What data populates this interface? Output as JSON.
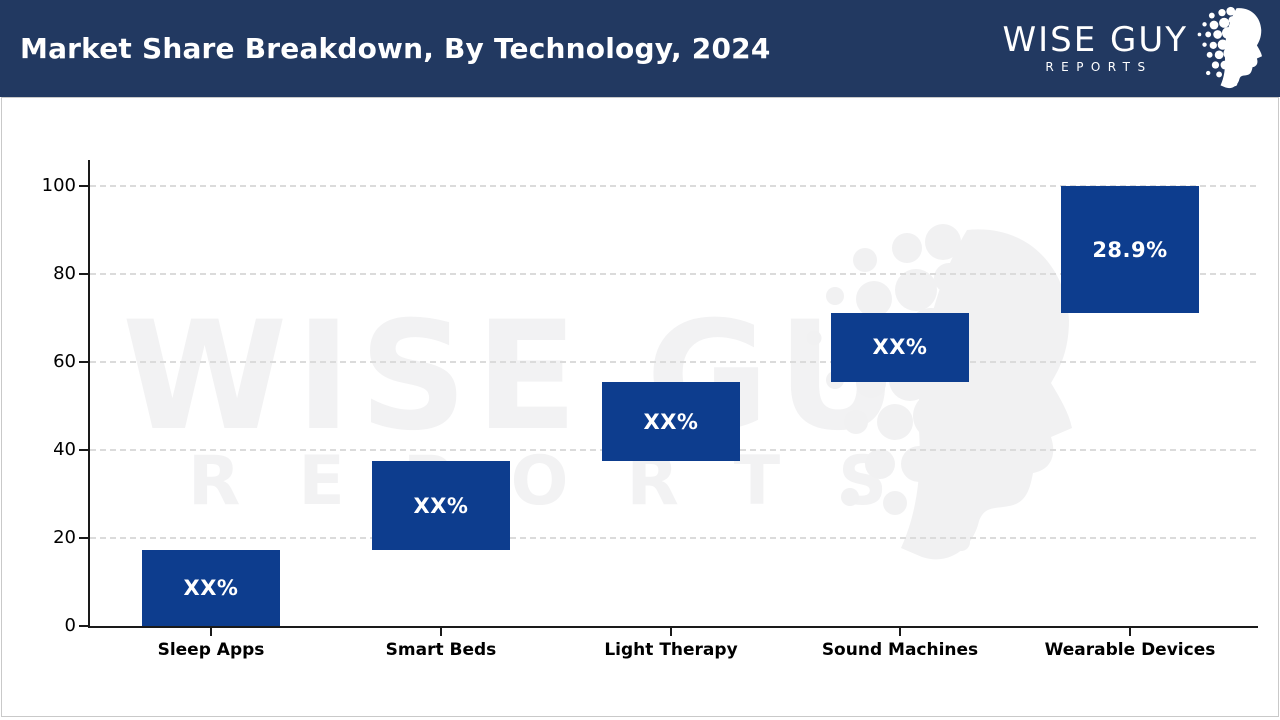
{
  "header": {
    "title": "Market Share Breakdown, By Technology, 2024",
    "logo": {
      "line1": "WISE GUY",
      "line2": "REPORTS"
    }
  },
  "watermark": {
    "line1": "WISE GUY",
    "line2": "REPORTS"
  },
  "colors": {
    "header_bg": "#223961",
    "bar": "#0D3D8E",
    "grid": "#DBDBDB",
    "axis": "#1A1A1A",
    "watermark": "#F2F2F3",
    "card_border": "#C9C9C9"
  },
  "chart_data": {
    "type": "bar",
    "subtype": "waterfall",
    "title": "Market Share Breakdown, By Technology, 2024",
    "xlabel": "",
    "ylabel": "",
    "categories": [
      "Sleep Apps",
      "Smart Beds",
      "Light Therapy",
      "Sound Machines",
      "Wearable Devices"
    ],
    "bars": [
      {
        "category": "Sleep Apps",
        "start": 0,
        "end": 17.2,
        "value": 17.2,
        "label": "XX%"
      },
      {
        "category": "Smart Beds",
        "start": 17.2,
        "end": 37.4,
        "value": 20.2,
        "label": "XX%"
      },
      {
        "category": "Light Therapy",
        "start": 37.4,
        "end": 55.5,
        "value": 18.1,
        "label": "XX%"
      },
      {
        "category": "Sound Machines",
        "start": 55.5,
        "end": 71.1,
        "value": 15.6,
        "label": "XX%"
      },
      {
        "category": "Wearable Devices",
        "start": 71.1,
        "end": 100,
        "value": 28.9,
        "label": "28.9%"
      }
    ],
    "yticks": [
      0,
      20,
      40,
      60,
      80,
      100
    ],
    "ylim": [
      0,
      106
    ],
    "grid": "horizontal-dashed",
    "legend": "none",
    "bar_color": "#0D3D8E",
    "bar_label_color": "#FFFFFF"
  }
}
